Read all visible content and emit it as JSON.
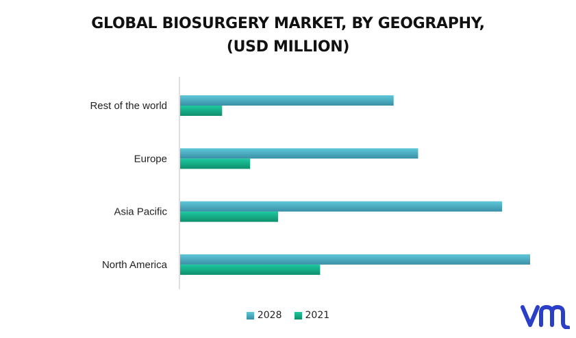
{
  "title_line1": "GLOBAL BIOSURGERY MARKET, BY GEOGRAPHY,",
  "title_line2": "(USD MILLION)",
  "colors": {
    "series_2028_top": "#5ec8d8",
    "series_2028_bottom": "#3a8fa6",
    "series_2021_top": "#1ec9a0",
    "series_2021_bottom": "#0e8f6c",
    "axis": "#bfbfbf",
    "logo": "#2b3ec7"
  },
  "logo_icon": "vmr-logo-icon",
  "chart_data": {
    "type": "bar",
    "orientation": "horizontal",
    "categories": [
      "Rest of the world",
      "Europe",
      "Asia Pacific",
      "North America"
    ],
    "series": [
      {
        "name": "2028",
        "values": [
          61,
          68,
          92,
          100
        ]
      },
      {
        "name": "2021",
        "values": [
          12,
          20,
          28,
          40
        ]
      }
    ],
    "xlim": [
      0,
      100
    ],
    "grid": false,
    "legend_position": "bottom",
    "xlabel": "",
    "ylabel": ""
  }
}
